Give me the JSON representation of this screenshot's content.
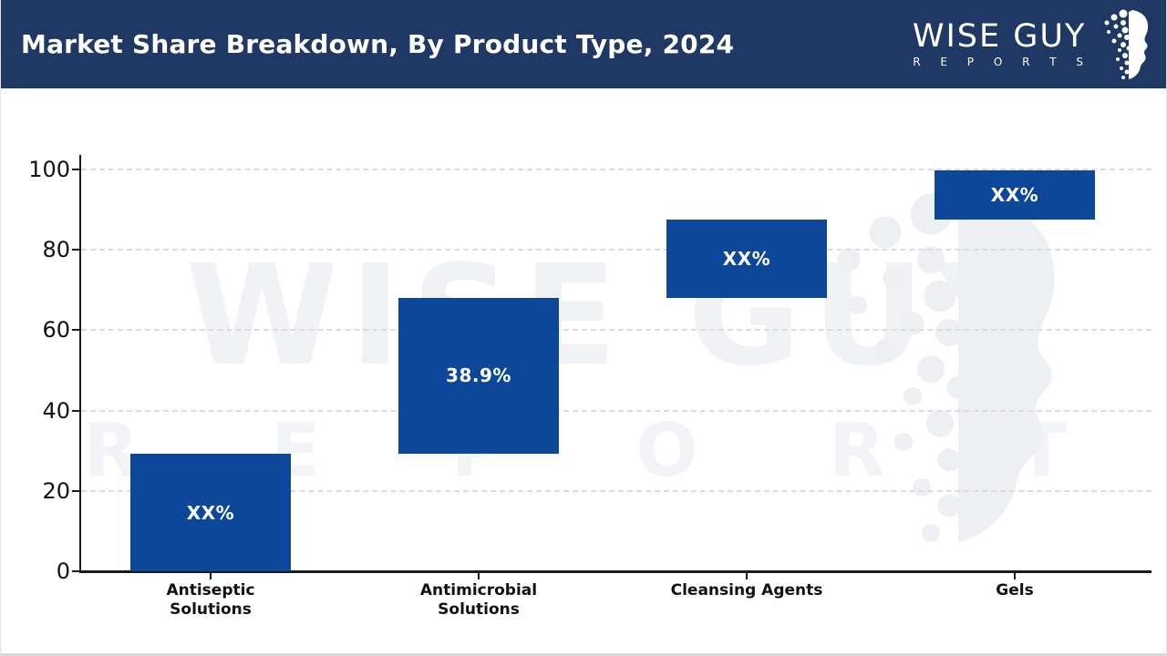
{
  "header": {
    "title": "Market Share Breakdown, By Product Type, 2024",
    "bg_color": "#1f3864",
    "logo": {
      "line1": "WISE GUY",
      "line2": "R E P O R T S",
      "face_icon": "dotted-head-profile"
    }
  },
  "watermark": {
    "line1": "WISE GUY",
    "line2": "R E P O R T S",
    "face_icon": "dotted-head-profile"
  },
  "chart_data": {
    "type": "bar",
    "subtype": "waterfall",
    "title": "Market Share Breakdown, By Product Type, 2024",
    "xlabel": "",
    "ylabel": "",
    "categories": [
      "Antiseptic Solutions",
      "Antimicrobial Solutions",
      "Cleansing Agents",
      "Gels"
    ],
    "category_lines": [
      [
        "Antiseptic",
        "Solutions"
      ],
      [
        "Antimicrobial",
        "Solutions"
      ],
      [
        "Cleansing Agents"
      ],
      [
        "Gels"
      ]
    ],
    "segments": [
      {
        "category": "Antiseptic Solutions",
        "start": 0,
        "end": 29.2,
        "value_label": "XX%"
      },
      {
        "category": "Antimicrobial Solutions",
        "start": 29.2,
        "end": 68.1,
        "value_label": "38.9%"
      },
      {
        "category": "Cleansing Agents",
        "start": 68.1,
        "end": 87.5,
        "value_label": "XX%"
      },
      {
        "category": "Gels",
        "start": 87.5,
        "end": 99.8,
        "value_label": "XX%"
      }
    ],
    "yticks": [
      0,
      20,
      40,
      60,
      80,
      100
    ],
    "ylim": [
      0,
      103.5
    ],
    "grid": "horizontal-dashed",
    "legend": "none",
    "bar_color": "#0d4799",
    "bar_label_color": "#ffffff"
  }
}
